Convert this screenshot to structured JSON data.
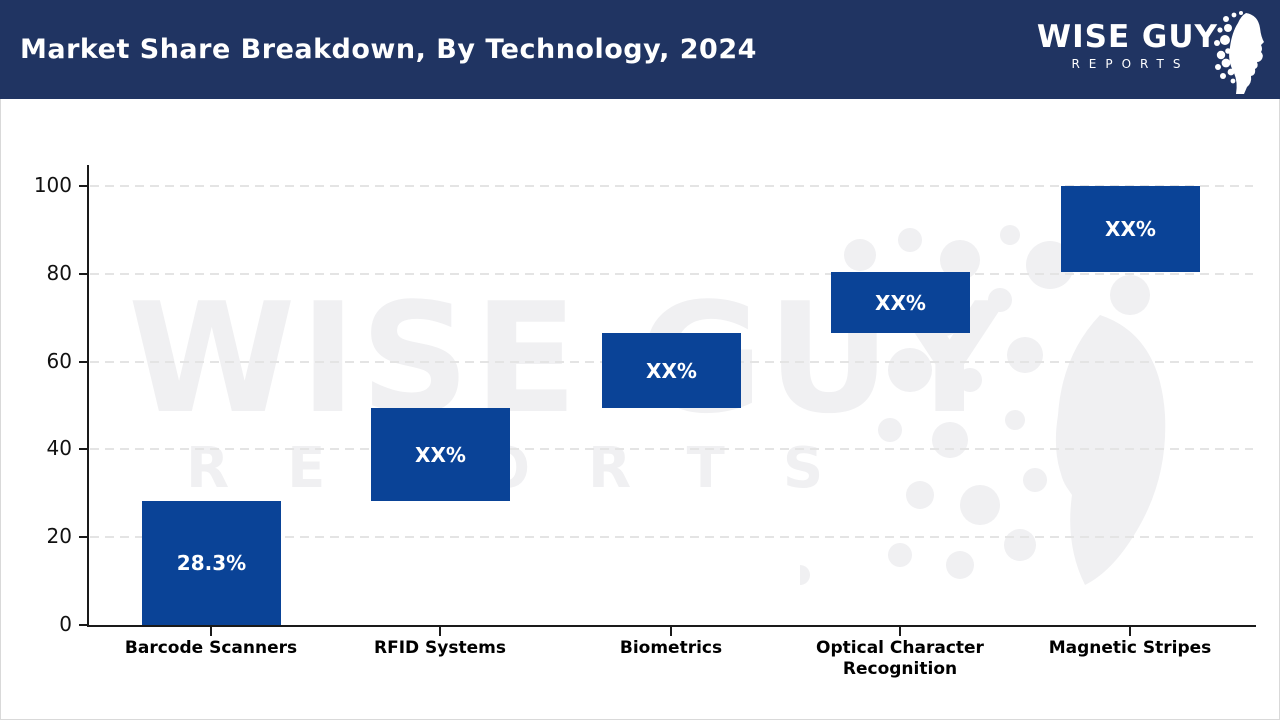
{
  "header": {
    "title": "Market Share Breakdown, By Technology, 2024",
    "bg_color": "#203462",
    "logo": {
      "line1": "WISE GUY",
      "line2": "REPORTS",
      "icon": "dotted-head-profile"
    }
  },
  "watermark": {
    "line1": "WISE GUY",
    "line2": "REPORTS",
    "icon": "dotted-head-profile"
  },
  "chart_data": {
    "type": "bar",
    "subtype": "waterfall",
    "title": "Market Share Breakdown, By Technology, 2024",
    "categories": [
      "Barcode Scanners",
      "RFID Systems",
      "Biometrics",
      "Optical Character Recognition",
      "Magnetic Stripes"
    ],
    "segments": [
      {
        "category": "Barcode Scanners",
        "start": 0,
        "end": 28.3,
        "label": "28.3%"
      },
      {
        "category": "RFID Systems",
        "start": 28.3,
        "end": 49.5,
        "label": "XX%"
      },
      {
        "category": "Biometrics",
        "start": 49.5,
        "end": 66.5,
        "label": "XX%"
      },
      {
        "category": "Optical Character Recognition",
        "start": 66.5,
        "end": 80.5,
        "label": "XX%"
      },
      {
        "category": "Magnetic Stripes",
        "start": 80.5,
        "end": 100,
        "label": "XX%"
      }
    ],
    "y_ticks": [
      0,
      20,
      40,
      60,
      80,
      100
    ],
    "ylim": [
      0,
      107
    ],
    "xlabel": "",
    "ylabel": "",
    "grid": "horizontal-dashed",
    "legend": "none",
    "bar_color": "#0a4397",
    "bar_label_color": "#ffffff",
    "axis_color": "#1a1a1a"
  }
}
